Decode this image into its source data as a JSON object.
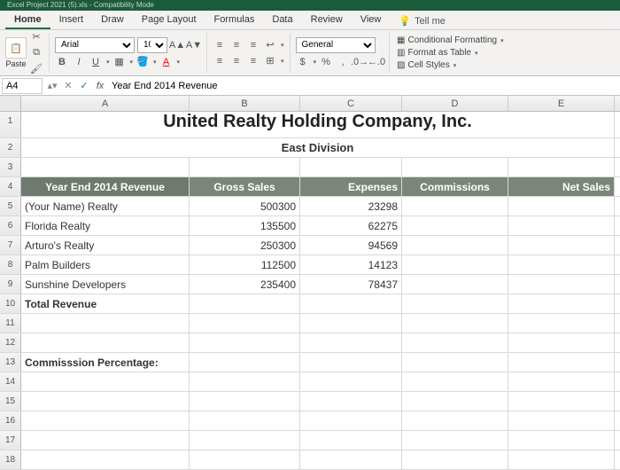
{
  "titlebar": "Excel Project 2021 (5).xls - Compatibility Mode",
  "tabs": [
    "Home",
    "Insert",
    "Draw",
    "Page Layout",
    "Formulas",
    "Data",
    "Review",
    "View"
  ],
  "tellme": "Tell me",
  "font": {
    "name": "Arial",
    "size": "10"
  },
  "paste": "Paste",
  "numberFormat": "General",
  "styles": {
    "cond": "Conditional Formatting",
    "table": "Format as Table",
    "cell": "Cell Styles"
  },
  "nameBox": "A4",
  "formula": "Year End 2014 Revenue",
  "colWidths": {
    "A": 190,
    "B": 125,
    "C": 115,
    "D": 120,
    "E": 120
  },
  "cols": [
    "A",
    "B",
    "C",
    "D",
    "E"
  ],
  "grid": {
    "r1": {
      "a": "United Realty Holding Company, Inc."
    },
    "r2": {
      "a": "East Division"
    },
    "r4": {
      "a": "Year End 2014 Revenue",
      "b": "Gross Sales",
      "c": "Expenses",
      "d": "Commissions",
      "e": "Net Sales"
    },
    "r5": {
      "a": "(Your Name) Realty",
      "b": "500300",
      "c": "23298"
    },
    "r6": {
      "a": "Florida Realty",
      "b": "135500",
      "c": "62275"
    },
    "r7": {
      "a": "Arturo's Realty",
      "b": "250300",
      "c": "94569"
    },
    "r8": {
      "a": "Palm Builders",
      "b": "112500",
      "c": "14123"
    },
    "r9": {
      "a": "Sunshine Developers",
      "b": "235400",
      "c": "78437"
    },
    "r10": {
      "a": "   Total Revenue"
    },
    "r13": {
      "a": "Commisssion Percentage:"
    }
  }
}
